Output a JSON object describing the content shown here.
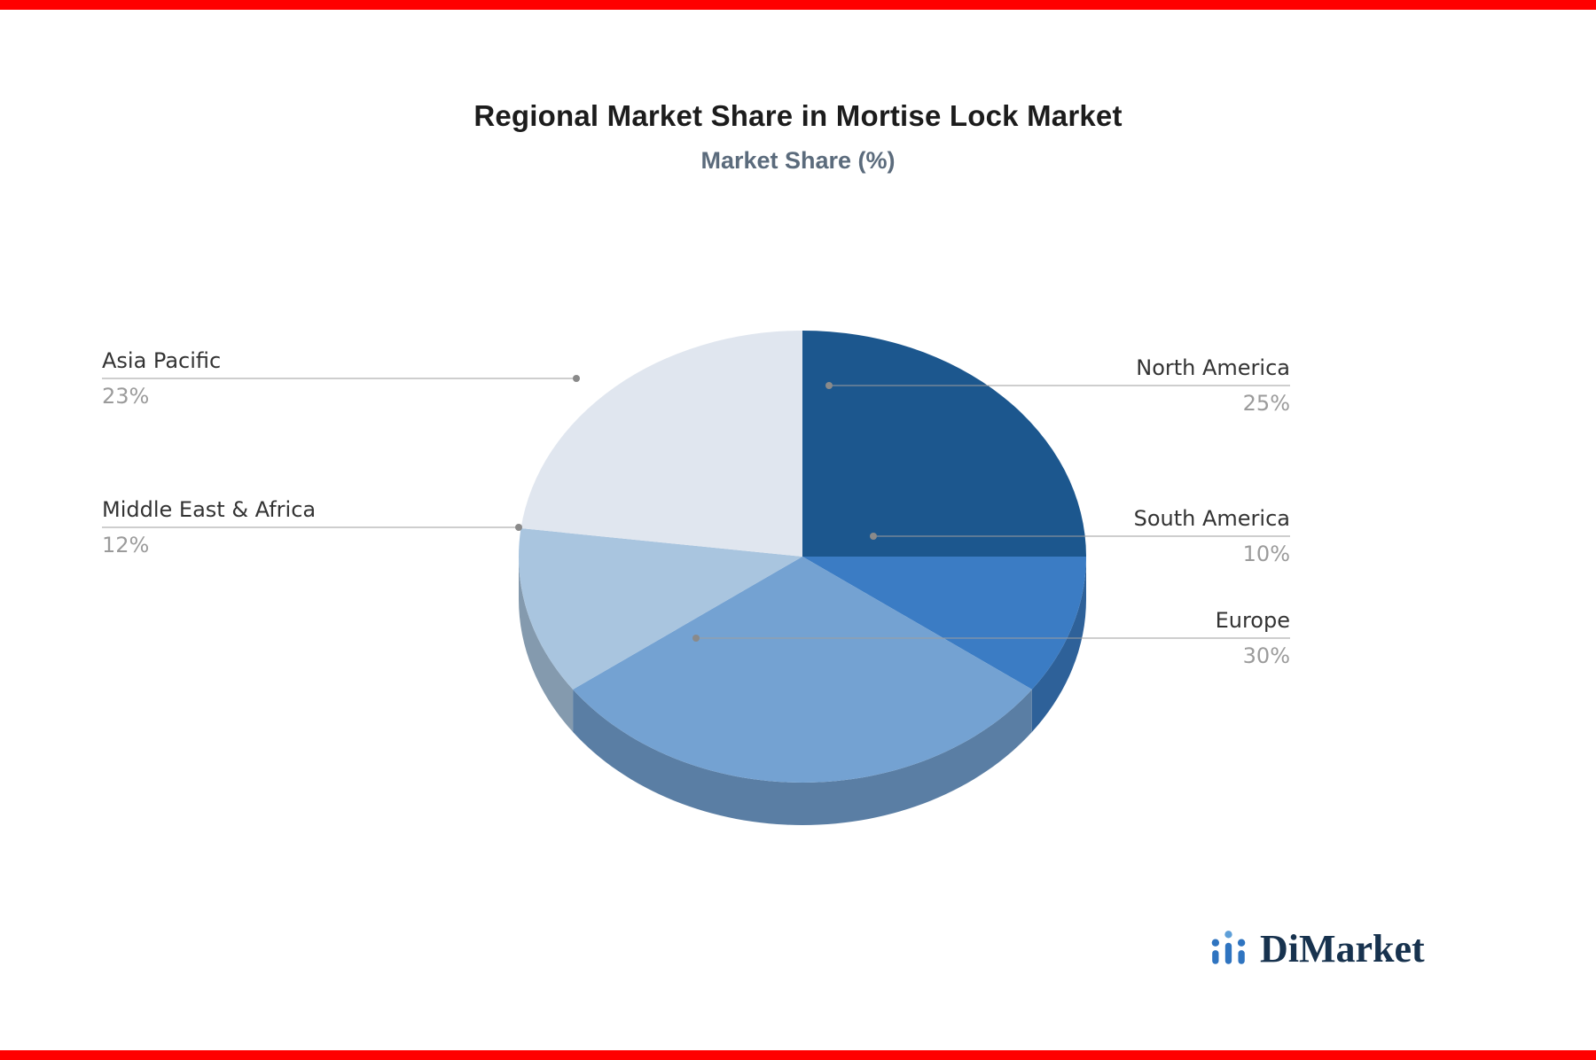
{
  "page": {
    "title": "Regional Market Share in Mortise Lock Market",
    "subtitle": "Market Share (%)",
    "accent_bar_color": "#ff0000",
    "background_color": "#ffffff"
  },
  "branding": {
    "logo_text": "DiMarket",
    "logo_icon": "bar-chart-icon",
    "logo_text_color": "#17324e",
    "logo_icon_color": "#2f74c0"
  },
  "chart_data": {
    "type": "pie",
    "style": "3d",
    "title": "Regional Market Share in Mortise Lock Market",
    "subtitle": "Market Share (%)",
    "unit": "%",
    "start_angle_deg": -90,
    "direction": "clockwise",
    "legend_position": "callout-labels",
    "leader_line_color": "#9e9e9e",
    "leader_dot_color": "#8a8a8a",
    "label_color": "#333333",
    "value_color": "#9b9b9b",
    "segments": [
      {
        "label": "North America",
        "value": 25,
        "pct": "25%",
        "color": "#1c578e"
      },
      {
        "label": "South America",
        "value": 10,
        "pct": "10%",
        "color": "#3b7cc4"
      },
      {
        "label": "Europe",
        "value": 30,
        "pct": "30%",
        "color": "#74a2d2"
      },
      {
        "label": "Middle East & Africa",
        "value": 12,
        "pct": "12%",
        "color": "#a9c5df"
      },
      {
        "label": "Asia Pacific",
        "value": 23,
        "pct": "23%",
        "color": "#e0e6ef"
      }
    ]
  }
}
